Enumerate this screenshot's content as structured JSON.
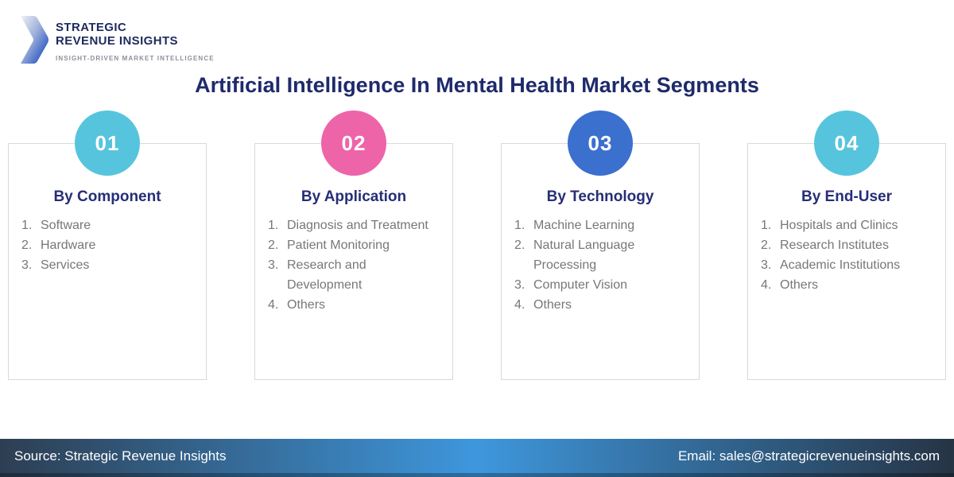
{
  "logo": {
    "name_line1": "STRATEGIC",
    "name_line2": "REVENUE INSIGHTS",
    "tagline": "INSIGHT-DRIVEN MARKET INTELLIGENCE",
    "mark_gradient_start": "#eef0f3",
    "mark_gradient_mid": "#8fa3d6",
    "mark_gradient_end": "#1f4fc0"
  },
  "title": "Artificial Intelligence In Mental Health Market Segments",
  "title_color": "#1e2a6b",
  "cards": [
    {
      "number": "01",
      "color": "#57c4de",
      "title": "By Component",
      "items": [
        {
          "n": "1.",
          "label": "Software"
        },
        {
          "n": "2.",
          "label": "Hardware"
        },
        {
          "n": "3.",
          "label": "Services"
        }
      ]
    },
    {
      "number": "02",
      "color": "#ee64a8",
      "title": "By Application",
      "items": [
        {
          "n": "1.",
          "label": "Diagnosis and Treatment"
        },
        {
          "n": "2.",
          "label": "Patient Monitoring"
        },
        {
          "n": "3.",
          "label": "Research and Development"
        },
        {
          "n": "4.",
          "label": "Others"
        }
      ]
    },
    {
      "number": "03",
      "color": "#3b70ce",
      "title": "By Technology",
      "items": [
        {
          "n": "1.",
          "label": "Machine Learning"
        },
        {
          "n": "2.",
          "label": "Natural Language Processing"
        },
        {
          "n": "3.",
          "label": "Computer Vision"
        },
        {
          "n": "4.",
          "label": "Others"
        }
      ]
    },
    {
      "number": "04",
      "color": "#57c4de",
      "title": "By End-User",
      "items": [
        {
          "n": "1.",
          "label": "Hospitals and Clinics"
        },
        {
          "n": "2.",
          "label": "Research Institutes"
        },
        {
          "n": "3.",
          "label": "Academic Institutions"
        },
        {
          "n": "4.",
          "label": "Others"
        }
      ]
    }
  ],
  "footer": {
    "source": "Source: Strategic Revenue Insights",
    "email": "Email: sales@strategicrevenueinsights.com",
    "gradient_left": "#2d3e52",
    "gradient_mid": "#3e97dd",
    "gradient_right": "#263445"
  }
}
